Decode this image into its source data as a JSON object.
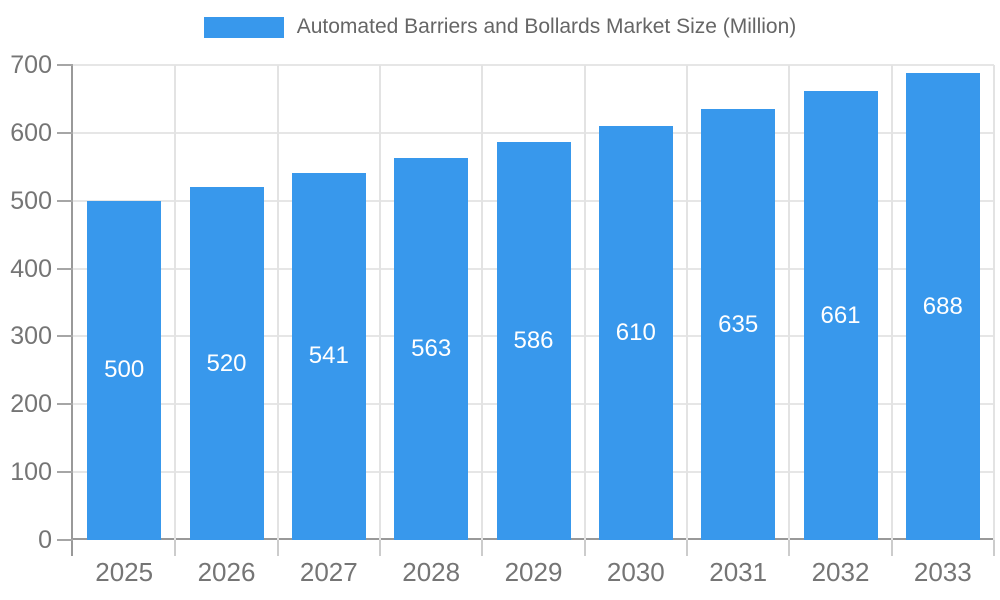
{
  "legend": {
    "label": "Automated Barriers and Bollards Market Size (Million)"
  },
  "chart_data": {
    "type": "bar",
    "title": "Automated Barriers and Bollards Market Size (Million)",
    "series_name": "Automated Barriers and Bollards Market Size (Million)",
    "categories": [
      "2025",
      "2026",
      "2027",
      "2028",
      "2029",
      "2030",
      "2031",
      "2032",
      "2033"
    ],
    "values": [
      500,
      520,
      541,
      563,
      586,
      610,
      635,
      661,
      688
    ],
    "value_labels": [
      "500",
      "520",
      "541",
      "563",
      "586",
      "610",
      "635",
      "661",
      "688"
    ],
    "xlabel": "",
    "ylabel": "",
    "ylim": [
      0,
      700
    ],
    "y_ticks": [
      0,
      100,
      200,
      300,
      400,
      500,
      600,
      700
    ],
    "grid": true,
    "legend_position": "top-center",
    "colors": {
      "bar": "#3898ec",
      "grid_line": "#e6e6e6",
      "axis_line": "#999999",
      "tick_label": "#757575",
      "legend_text": "#666666",
      "value_label": "#ffffff",
      "background": "#ffffff"
    }
  }
}
